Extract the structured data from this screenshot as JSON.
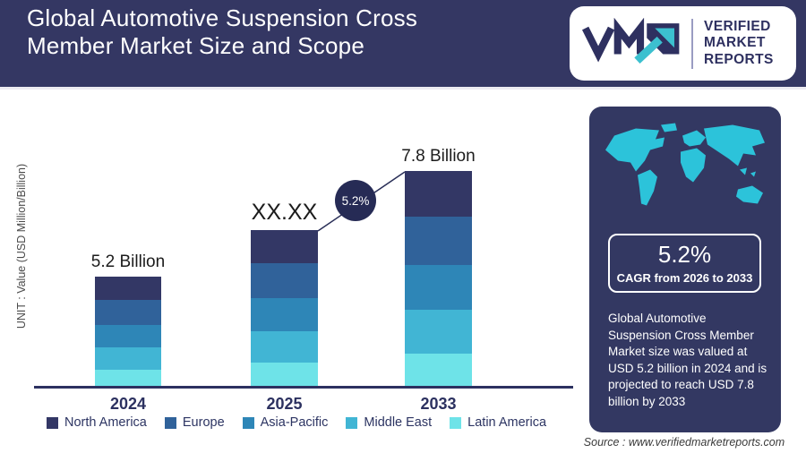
{
  "header": {
    "title": "Global Automotive Suspension Cross Member Market Size and Scope",
    "logo": {
      "monogram": "VMR",
      "brand_lines": [
        "VERIFIED",
        "MARKET",
        "REPORTS"
      ]
    }
  },
  "chart": {
    "y_axis_label": "UNIT : Value (USD Million/Billion)",
    "growth_badge": "5.2%",
    "bars": [
      {
        "year": "2024",
        "value_label": "5.2 Billion"
      },
      {
        "year": "2025",
        "value_label": "XX.XX"
      },
      {
        "year": "2033",
        "value_label": "7.8 Billion"
      }
    ],
    "legend": [
      {
        "label": "North America",
        "color": "#333765"
      },
      {
        "label": "Europe",
        "color": "#30629a"
      },
      {
        "label": "Asia-Pacific",
        "color": "#2e86b7"
      },
      {
        "label": "Middle East",
        "color": "#41b5d4"
      },
      {
        "label": "Latin America",
        "color": "#6ee3e8"
      }
    ]
  },
  "chart_data": {
    "type": "bar",
    "stacked": true,
    "title": "Global Automotive Suspension Cross Member Market Size and Scope",
    "categories": [
      "2024",
      "2025",
      "2033"
    ],
    "value_labels": [
      "5.2 Billion",
      "XX.XX",
      "7.8 Billion"
    ],
    "totals_usd_billion": [
      5.2,
      null,
      7.8
    ],
    "series": [
      "North America",
      "Europe",
      "Asia-Pacific",
      "Middle East",
      "Latin America"
    ],
    "segment_share_estimate": [
      0.21,
      0.225,
      0.21,
      0.2,
      0.155
    ],
    "annotation": {
      "text": "5.2%",
      "between": [
        "2025",
        "2033"
      ]
    },
    "ylabel": "UNIT : Value (USD Million/Billion)",
    "xlabel": "",
    "grid": false,
    "legend_position": "bottom"
  },
  "sidebar": {
    "cagr_value": "5.2%",
    "cagr_caption": "CAGR from 2026 to 2033",
    "description": "Global Automotive Suspension Cross Member Market size was valued at USD 5.2 billion in 2024 and is projected to reach USD 7.8 billion by 2033"
  },
  "footer": {
    "source": "Source : www.verifiedmarketreports.com"
  },
  "colors": {
    "header_bg": "#343763",
    "panel_bg": "#333862",
    "accent_teal": "#2cc3da",
    "axis_navy": "#2c3160",
    "badge_bg": "#262b55"
  }
}
